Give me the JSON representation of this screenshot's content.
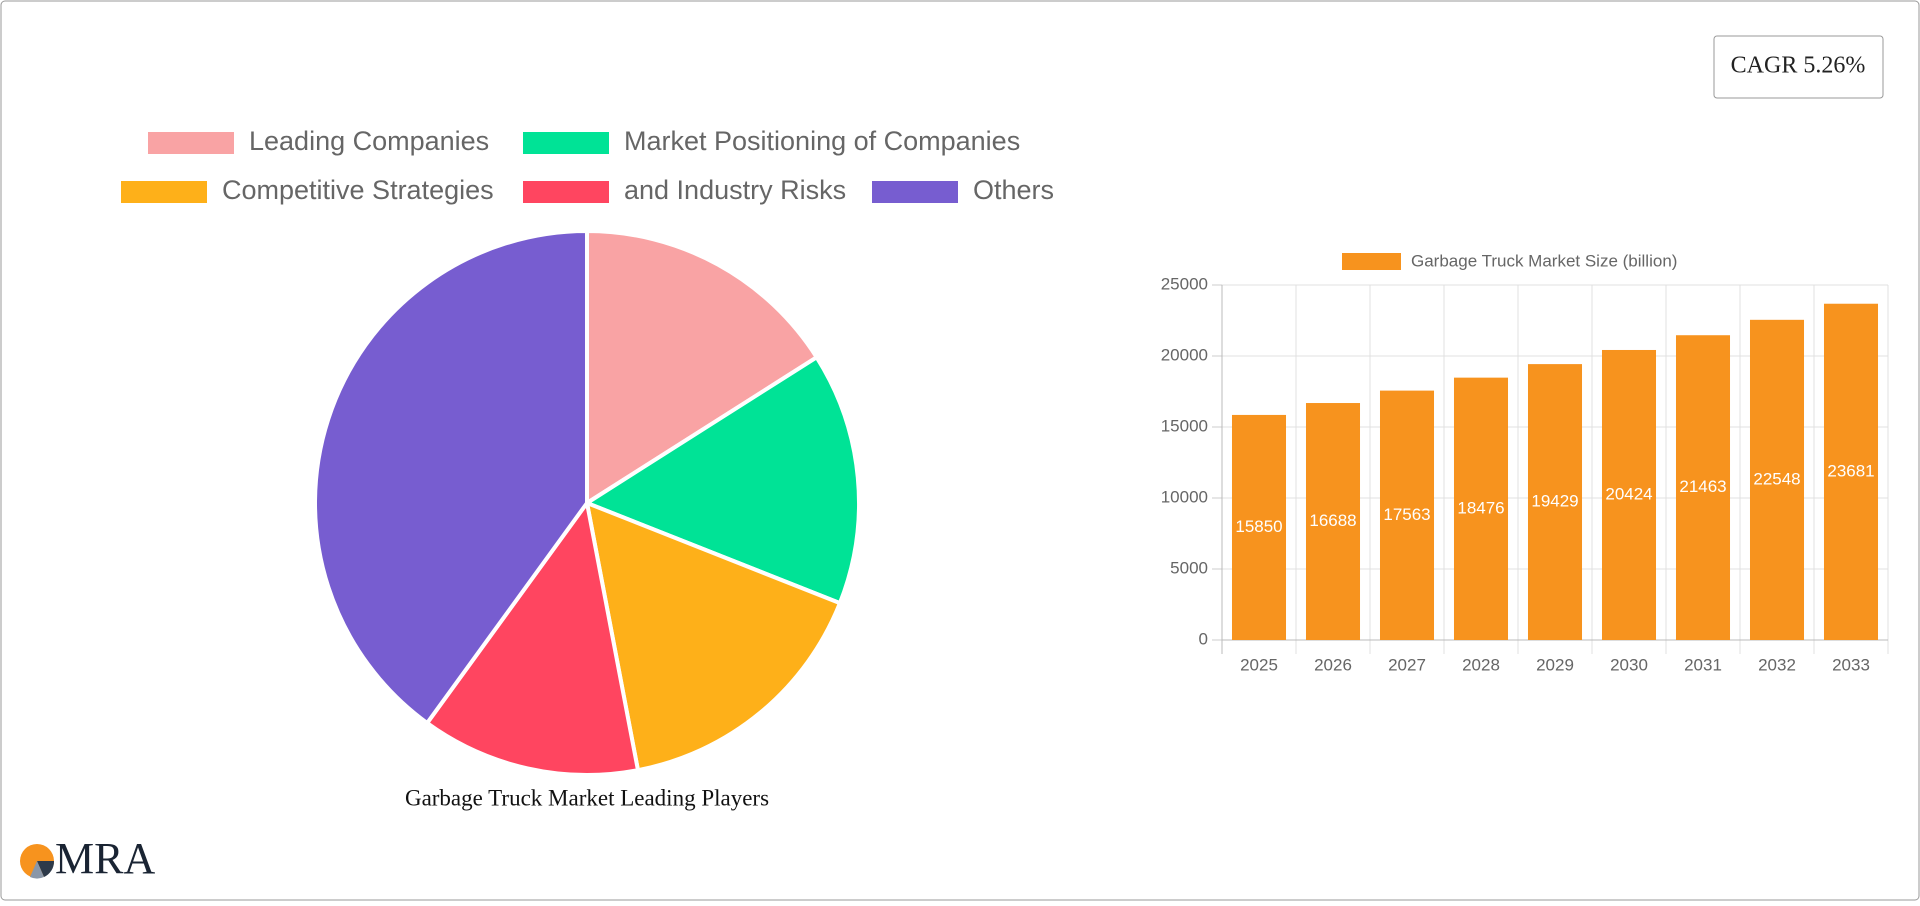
{
  "cagr": "CAGR 5.26%",
  "logo": "MRA",
  "chart_data": [
    {
      "type": "pie",
      "title": "Garbage Truck Market Leading Players",
      "categories": [
        "Leading Companies",
        "Market Positioning of Companies",
        "Competitive Strategies",
        "and Industry Risks",
        "Others"
      ],
      "values": [
        16,
        15,
        16,
        13,
        40
      ],
      "colors": [
        "#f9a3a4",
        "#00e396",
        "#feb019",
        "#ff4560",
        "#775dd0"
      ]
    },
    {
      "type": "bar",
      "series": [
        {
          "name": "Garbage Truck Market Size (billion)",
          "color": "#f7931e",
          "values": [
            15850,
            16688,
            17563,
            18476,
            19429,
            20424,
            21463,
            22548,
            23681
          ]
        }
      ],
      "categories": [
        "2025",
        "2026",
        "2027",
        "2028",
        "2029",
        "2030",
        "2031",
        "2032",
        "2033"
      ],
      "ylim": [
        0,
        25000
      ],
      "yticks": [
        0,
        5000,
        10000,
        15000,
        20000,
        25000
      ],
      "grid": true
    }
  ]
}
